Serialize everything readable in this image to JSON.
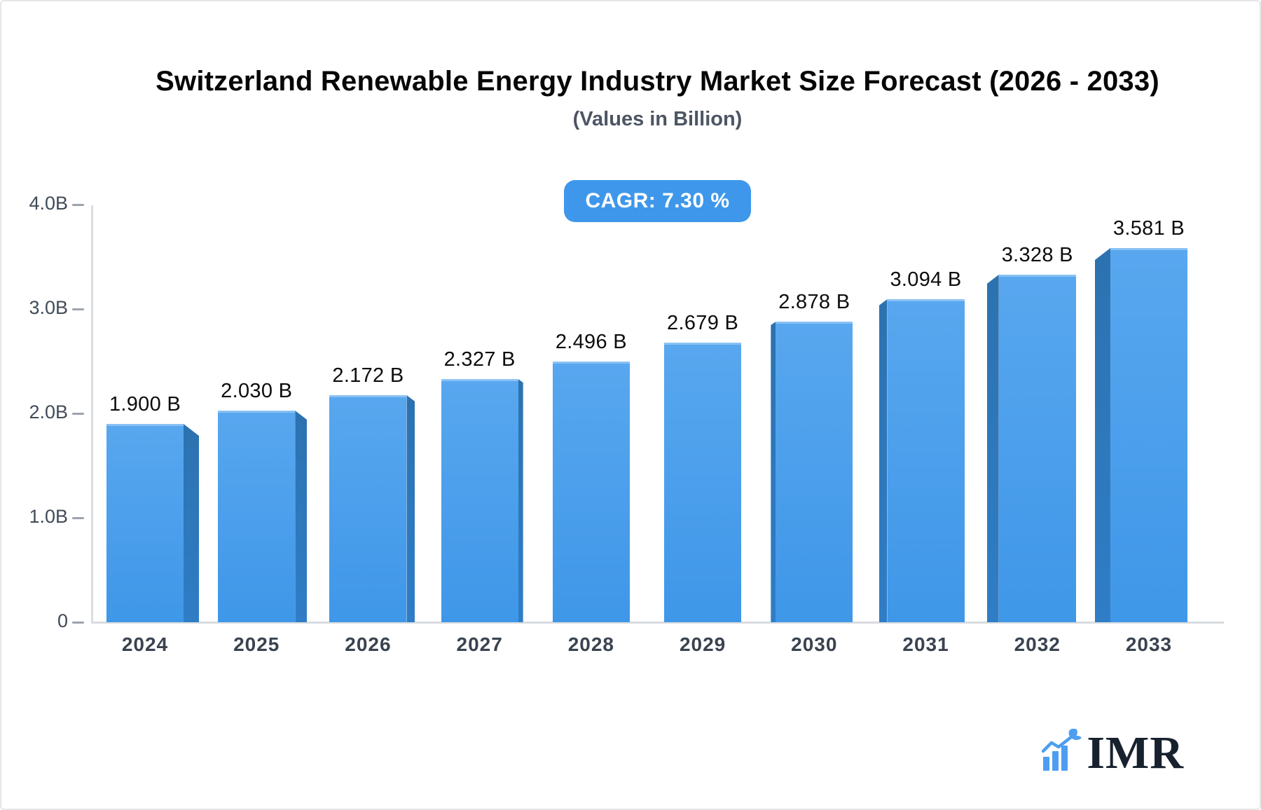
{
  "chart_data": {
    "type": "bar",
    "title": "Switzerland Renewable Energy Industry Market Size Forecast (2026 - 2033)",
    "subtitle": "(Values in Billion)",
    "cagr_label": "CAGR: 7.30 %",
    "categories": [
      "2024",
      "2025",
      "2026",
      "2027",
      "2028",
      "2029",
      "2030",
      "2031",
      "2032",
      "2033"
    ],
    "values": [
      1.9,
      2.03,
      2.172,
      2.327,
      2.496,
      2.679,
      2.878,
      3.094,
      3.328,
      3.581
    ],
    "value_labels": [
      "1.900 B",
      "2.030 B",
      "2.172 B",
      "2.327 B",
      "2.496 B",
      "2.679 B",
      "2.878 B",
      "3.094 B",
      "3.328 B",
      "3.581 B"
    ],
    "xlabel": "",
    "ylabel": "",
    "ylim": [
      0,
      4.0
    ],
    "yticks": [
      {
        "value": 0,
        "label": "0"
      },
      {
        "value": 1,
        "label": "1.0B"
      },
      {
        "value": 2,
        "label": "2.0B"
      },
      {
        "value": 3,
        "label": "3.0B"
      },
      {
        "value": 4,
        "label": "4.0B"
      }
    ],
    "grid": false,
    "legend": false,
    "colors": {
      "cagr_badge": "#3e97ea",
      "bar_face_top": "#58a7ef",
      "bar_face_bottom": "#3f97e8",
      "bar_side_top": "#2c72b0",
      "bar_side_bottom": "#2f7dc6",
      "axis_line": "#d9dce0",
      "tick_dash": "#9ca3ad"
    }
  },
  "logo": {
    "text": "IMR",
    "icon": "bar-chart-growth-leaf-icon",
    "icon_color": "#4d9ef0",
    "text_color": "#18222e"
  }
}
